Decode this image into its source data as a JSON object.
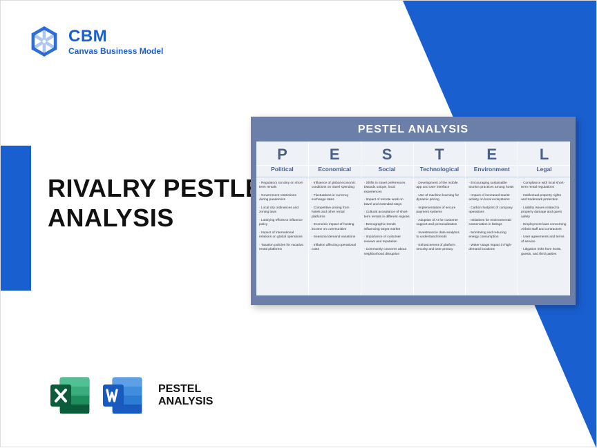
{
  "colors": {
    "brand_blue": "#1a5fd0",
    "triangle_blue": "#1a5fd0",
    "accent_blue": "#1a5fd0",
    "pestel_bg": "#6b7fa8",
    "pestel_cell": "#eef1f6",
    "pestel_text": "#4a5f8a",
    "excel_green": "#1e8e5e",
    "excel_dark": "#0b5c3a",
    "word_blue": "#2b7cd3",
    "word_dark": "#185abd"
  },
  "logo": {
    "title": "CBM",
    "subtitle": "Canvas Business Model"
  },
  "main_title_line1": "RIVALRY PESTLE",
  "main_title_line2": "ANALYSIS",
  "pestel": {
    "title": "PESTEL ANALYSIS",
    "columns": [
      {
        "letter": "P",
        "label": "Political",
        "items": [
          "· Regulatory scrutiny on short-term rentals",
          "· Government restrictions during pandemics",
          "· Local city ordinances and zoning laws",
          "· Lobbying efforts to influence policy",
          "· Impact of international relations on global operations",
          "· Taxation policies for vacation rental platforms"
        ]
      },
      {
        "letter": "E",
        "label": "Economical",
        "items": [
          "· Influence of global economic conditions on travel spending",
          "· Fluctuations in currency exchange rates",
          "· Competitive pricing from hotels and other rental platforms",
          "· Economic impact of hosting income on communities",
          "· Seasonal demand variations",
          "· Inflation affecting operational costs"
        ]
      },
      {
        "letter": "S",
        "label": "Social",
        "items": [
          "· Shifts in travel preferences towards unique, local experiences",
          "· Impact of remote work on travel and extended stays",
          "· Cultural acceptance of short-term rentals in different regions",
          "· Demographic trends influencing target market",
          "· Importance of customer reviews and reputation",
          "· Community concerns about neighborhood disruption"
        ]
      },
      {
        "letter": "T",
        "label": "Technological",
        "items": [
          "· Development of the mobile app and user interface",
          "· Use of machine learning for dynamic pricing",
          "· Implementation of secure payment systems",
          "· Adoption of AI for customer support and personalization",
          "· Investment in data analytics to understand trends",
          "· Enhancement of platform security and user privacy"
        ]
      },
      {
        "letter": "E",
        "label": "Environment",
        "items": [
          "· Encouraging sustainable tourism practices among hosts",
          "· Impact of increased tourist activity on local ecosystems",
          "· Carbon footprint of company operations",
          "· Initiatives for environmental conservation in listings",
          "· Monitoring and reducing energy consumption",
          "· Water usage impact in high-demand locations"
        ]
      },
      {
        "letter": "L",
        "label": "Legal",
        "items": [
          "· Compliance with local short-term rental regulations",
          "· Intellectual property rights and trademark protection",
          "· Liability issues related to property damage and guest safety",
          "· Employment laws concerning Airbnb staff and contractors",
          "· User agreements and terms of service",
          "· Litigation risks from hosts, guests, and third parties"
        ]
      }
    ]
  },
  "bottom": {
    "line1": "PESTEL",
    "line2": "ANALYSIS"
  }
}
